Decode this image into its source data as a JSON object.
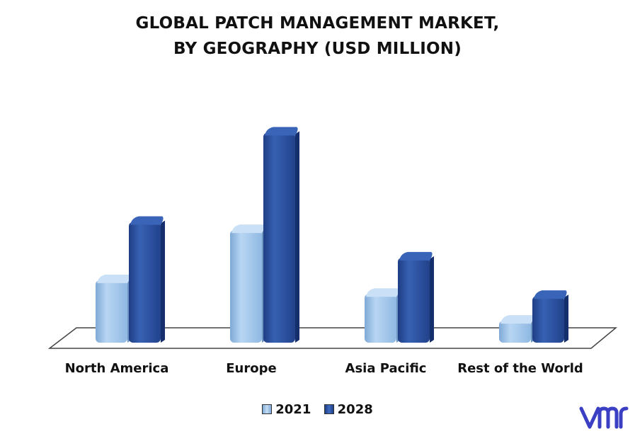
{
  "colors": {
    "series_2021": "#9cc4ea",
    "series_2028": "#2b4f9e",
    "logo": "#3a3fc4"
  },
  "chart_data": {
    "type": "bar",
    "title": "GLOBAL PATCH MANAGEMENT MARKET, BY GEOGRAPHY (USD MILLION)",
    "title_lines": [
      "GLOBAL PATCH MANAGEMENT MARKET,",
      "BY GEOGRAPHY (USD MILLION)"
    ],
    "categories": [
      "North America",
      "Europe",
      "Asia Pacific",
      "Rest of the World"
    ],
    "series": [
      {
        "name": "2021",
        "values": [
          95,
          168,
          75,
          36
        ]
      },
      {
        "name": "2028",
        "values": [
          180,
          310,
          128,
          72
        ]
      }
    ],
    "legend_position": "bottom",
    "grid": false,
    "ylim": [
      0,
      330
    ]
  }
}
